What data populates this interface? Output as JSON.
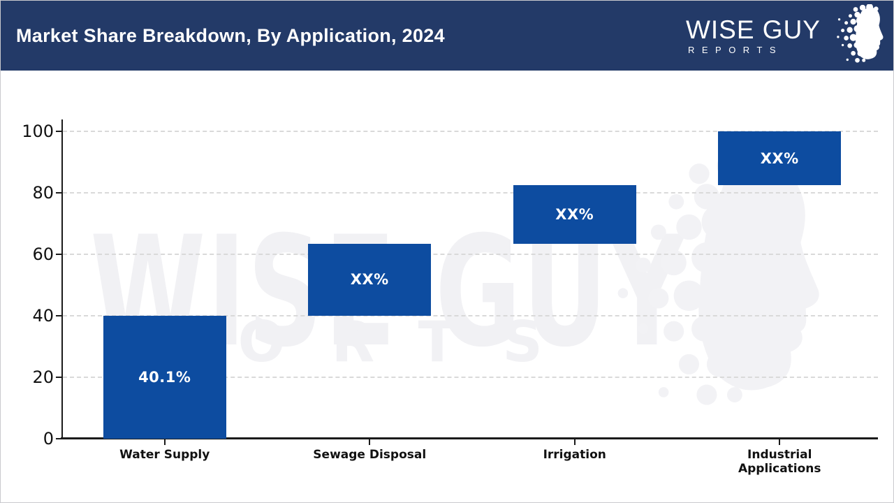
{
  "header": {
    "title": "Market Share Breakdown, By Application, 2024",
    "logo": {
      "line1": "WISE GUY",
      "line2": "REPORTS"
    }
  },
  "watermark": {
    "line1": "WISE GUY",
    "line2": "PORTS"
  },
  "chart_data": {
    "type": "bar",
    "subtype": "waterfall",
    "title": "Market Share Breakdown, By Application, 2024",
    "categories": [
      "Water Supply",
      "Sewage Disposal",
      "Irrigation",
      "Industrial Applications"
    ],
    "segments": [
      {
        "category": "Water Supply",
        "start": 0,
        "end": 40.1,
        "label": "40.1%"
      },
      {
        "category": "Sewage Disposal",
        "start": 40.1,
        "end": 63.5,
        "label": "XX%"
      },
      {
        "category": "Irrigation",
        "start": 63.5,
        "end": 82.5,
        "label": "XX%"
      },
      {
        "category": "Industrial Applications",
        "start": 82.5,
        "end": 100,
        "label": "XX%"
      }
    ],
    "xlabel": "",
    "ylabel": "",
    "ylim": [
      0,
      100
    ],
    "yticks": [
      0,
      20,
      40,
      60,
      80,
      100
    ],
    "grid": "horizontal-dashed",
    "legend": "none",
    "colors": {
      "bar": "#0D4CA0",
      "bar_label": "#FFFFFF",
      "axis": "#1A1A1A",
      "tick_label": "#111111",
      "gridline": "#D9D9D9",
      "header_bg": "#233A68",
      "header_text": "#FFFFFF",
      "watermark": "#F1F1F4"
    }
  }
}
